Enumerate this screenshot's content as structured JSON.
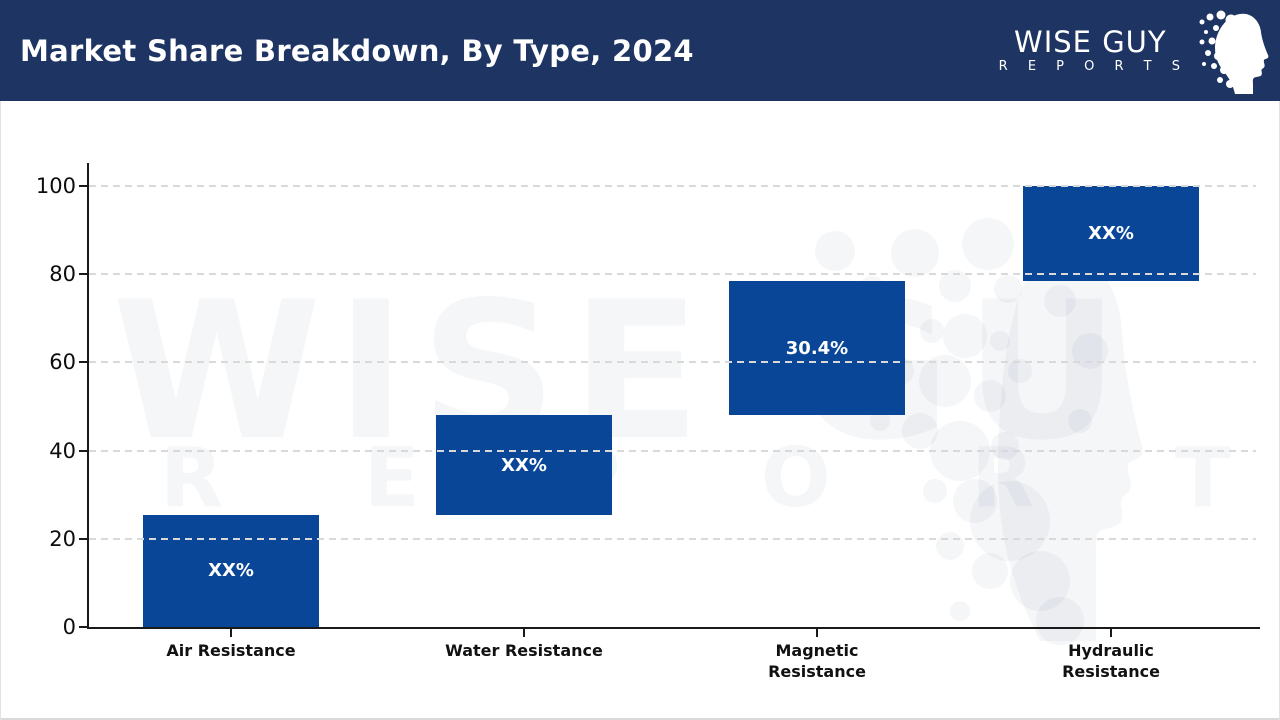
{
  "header": {
    "title": "Market Share Breakdown, By Type, 2024",
    "bg_color": "#1e3563",
    "logo": {
      "line1": "WISE GUY",
      "line2": "R E P O R T S"
    }
  },
  "watermark": {
    "line1": "WISE GU",
    "line2": "R E P O R T S"
  },
  "chart_data": {
    "type": "bar",
    "subtype": "floating-waterfall-segments",
    "title": "Market Share Breakdown, By Type, 2024",
    "categories": [
      "Air Resistance",
      "Water Resistance",
      "Magnetic Resistance",
      "Hydraulic Resistance"
    ],
    "tick_labels": [
      "Air Resistance",
      "Water Resistance",
      "Magnetic\nResistance",
      "Hydraulic\nResistance"
    ],
    "segments": [
      {
        "category": "Air Resistance",
        "start": 0,
        "end": 25.4,
        "height": 25.4,
        "bar_label": "XX%"
      },
      {
        "category": "Water Resistance",
        "start": 25.4,
        "end": 48.0,
        "height": 22.6,
        "bar_label": "XX%"
      },
      {
        "category": "Magnetic Resistance",
        "start": 48.0,
        "end": 78.4,
        "height": 30.4,
        "bar_label": "30.4%"
      },
      {
        "category": "Hydraulic Resistance",
        "start": 78.4,
        "end": 100.0,
        "height": 21.6,
        "bar_label": "XX%"
      }
    ],
    "ylim": [
      0,
      100
    ],
    "y_ticks": [
      "0",
      "20",
      "40",
      "60",
      "80",
      "100"
    ],
    "grid": "horizontal-dashed",
    "legend": "none",
    "bar_color": "#0a4697",
    "bar_label_color": "#ffffff",
    "grid_color": "#d9d9d9"
  }
}
